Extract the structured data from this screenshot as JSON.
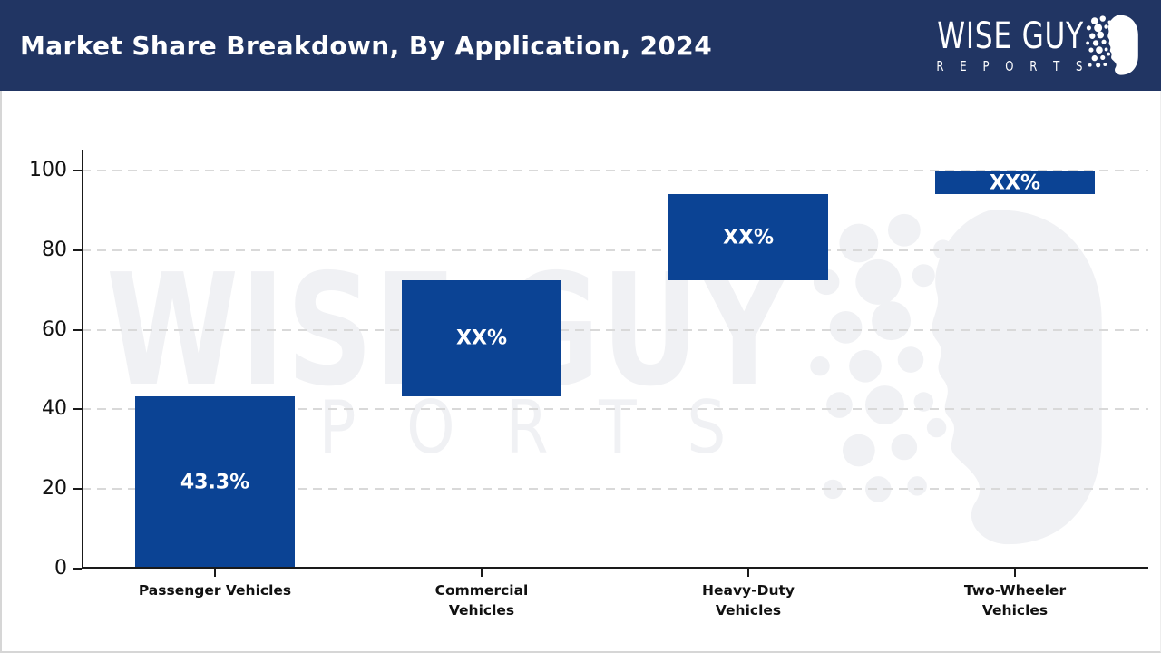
{
  "header": {
    "title": "Market Share Breakdown, By Application, 2024",
    "brand_name": "WISE GUY",
    "brand_sub": "R E P O R T S"
  },
  "watermark": {
    "line1": "WISE GUY",
    "line2": "R E P O R T S"
  },
  "chart_data": {
    "type": "bar",
    "subtype": "floating-waterfall-segments",
    "title": "Market Share Breakdown, By Application, 2024",
    "categories": [
      "Passenger Vehicles",
      "Commercial Vehicles",
      "Heavy-Duty Vehicles",
      "Two-Wheeler Vehicles"
    ],
    "category_lines": [
      [
        "Passenger Vehicles"
      ],
      [
        "Commercial",
        "Vehicles"
      ],
      [
        "Heavy-Duty",
        "Vehicles"
      ],
      [
        "Two-Wheeler",
        "Vehicles"
      ]
    ],
    "bars": [
      {
        "category": "Passenger Vehicles",
        "start": 0,
        "end": 43.3,
        "label": "43.3%"
      },
      {
        "category": "Commercial Vehicles",
        "start": 43.3,
        "end": 72.4,
        "label": "XX%"
      },
      {
        "category": "Heavy-Duty Vehicles",
        "start": 72.4,
        "end": 94.0,
        "label": "XX%"
      },
      {
        "category": "Two-Wheeler Vehicles",
        "start": 94.0,
        "end": 99.8,
        "label": "XX%"
      }
    ],
    "xlabel": "",
    "ylabel": "",
    "ylim": [
      0,
      105
    ],
    "yticks": [
      0,
      20,
      40,
      60,
      80,
      100
    ],
    "grid": "horizontal-dashed",
    "legend_position": "none",
    "bar_color": "#0b4394",
    "bar_label_color": "#ffffff"
  },
  "colors": {
    "header_bg": "#213563",
    "axis": "#1a1a1a",
    "grid": "#d9d9d9",
    "watermark": "#f0f1f4",
    "page_border": "#d6d6d6"
  }
}
